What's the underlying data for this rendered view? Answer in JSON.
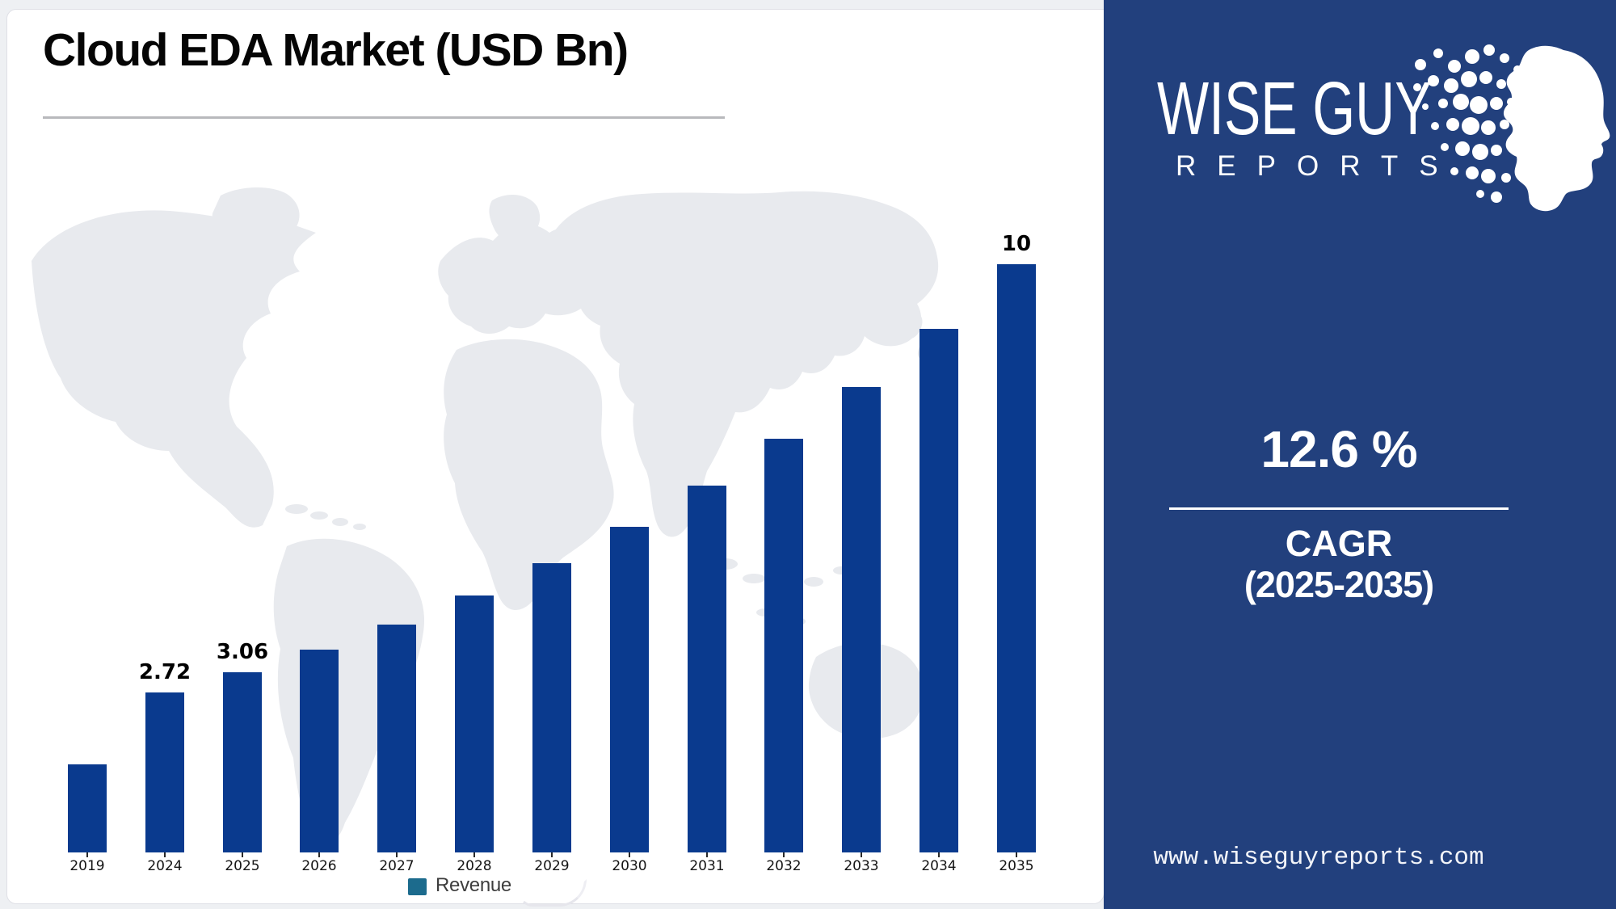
{
  "title": "Cloud EDA Market (USD Bn)",
  "legend": {
    "label": "Revenue",
    "swatch_color": "#1c6b8d"
  },
  "brand": {
    "line1": "WISE GUY",
    "line2": "REPORTS",
    "website": "www.wiseguyreports.com"
  },
  "stats": {
    "value": "12.6 %",
    "label": "CAGR",
    "period": "(2025-2035)"
  },
  "colors": {
    "bar": "#0a3a8e",
    "panel": "#22407d",
    "map": "#e8eaee",
    "page_background": "#eef0f3"
  },
  "chart_data": {
    "type": "bar",
    "title": "Cloud EDA Market (USD Bn)",
    "series_name": "Revenue",
    "categories": [
      "2019",
      "2024",
      "2025",
      "2026",
      "2027",
      "2028",
      "2029",
      "2030",
      "2031",
      "2032",
      "2033",
      "2034",
      "2035"
    ],
    "values": [
      1.5,
      2.72,
      3.06,
      3.45,
      3.88,
      4.37,
      4.92,
      5.54,
      6.24,
      7.03,
      7.91,
      8.9,
      10
    ],
    "bar_labels": [
      "",
      "2.72",
      "3.06",
      "",
      "",
      "",
      "",
      "",
      "",
      "",
      "",
      "",
      "10"
    ],
    "xlabel": "",
    "ylabel": "",
    "ylim": [
      0,
      10.4
    ],
    "grid": false,
    "legend_position": "bottom",
    "bar_color": "#0a3a8e",
    "unit": "USD Bn",
    "cagr_pct": 12.6,
    "cagr_period": "2025-2035"
  }
}
